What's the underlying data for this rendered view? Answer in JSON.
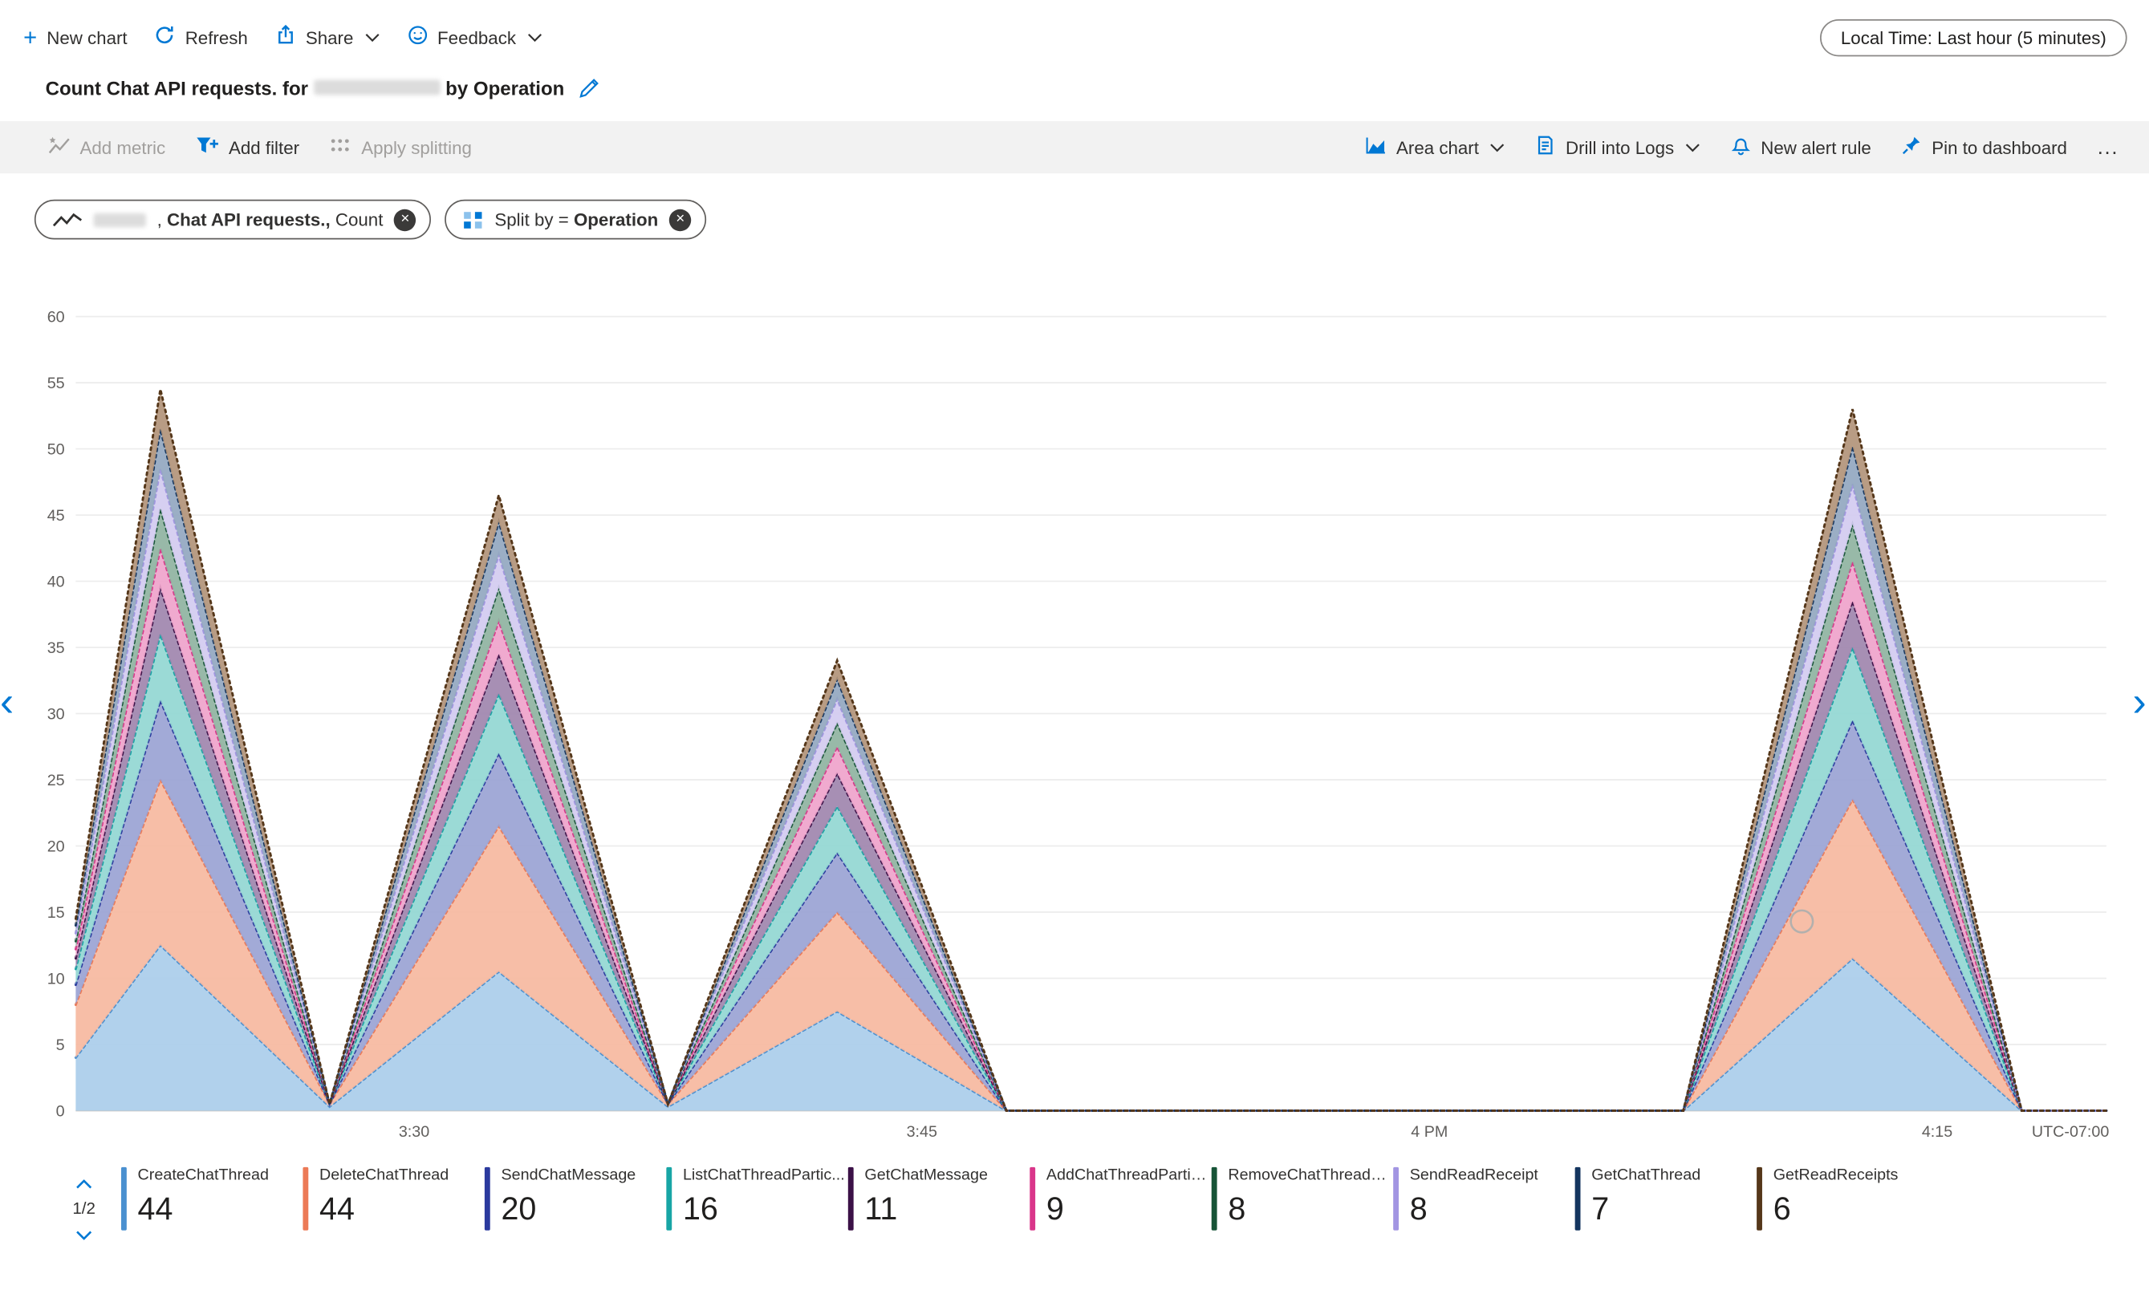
{
  "top_bar": {
    "new_chart": "New chart",
    "refresh": "Refresh",
    "share": "Share",
    "feedback": "Feedback",
    "time_range": "Local Time: Last hour (5 minutes)"
  },
  "title": {
    "prefix": "Count Chat API requests. for",
    "suffix": "by Operation"
  },
  "command_bar": {
    "add_metric": "Add metric",
    "add_filter": "Add filter",
    "apply_splitting": "Apply splitting",
    "chart_type": "Area chart",
    "drill_into_logs": "Drill into Logs",
    "new_alert_rule": "New alert rule",
    "pin_to_dashboard": "Pin to dashboard",
    "more": "..."
  },
  "pills": {
    "metric": {
      "separator": ", ",
      "name": "Chat API requests.,",
      "aggregation": "Count"
    },
    "split": {
      "label": "Split by = ",
      "value": "Operation"
    }
  },
  "legend": {
    "page": "1/2"
  },
  "axis": {
    "timezone": "UTC-07:00",
    "y_ticks": [
      0,
      5,
      10,
      15,
      20,
      25,
      30,
      35,
      40,
      45,
      50,
      55,
      60
    ]
  },
  "icons": {
    "new_chart": "plus-icon",
    "refresh": "circular-arrow-icon",
    "share": "share-arrow-icon",
    "feedback": "smiley-icon",
    "chevron": "chevron-down-icon",
    "add_metric": "sparkline-star-icon",
    "add_filter": "funnel-plus-icon",
    "apply_splitting": "dots-grid-icon",
    "area_chart": "area-chart-icon",
    "drill_into_logs": "document-lines-icon",
    "new_alert_rule": "bell-icon",
    "pin_to_dashboard": "pushpin-icon",
    "more": "ellipsis-icon",
    "metric_pill": "sparkline-icon",
    "split_pill": "split-squares-icon",
    "close": "x-circle-icon",
    "edit_title": "pencil-icon",
    "pan_left": "chevron-left-icon",
    "pan_right": "chevron-right-icon"
  },
  "chart_data": {
    "type": "area",
    "stacked": true,
    "title": "Count Chat API requests by Operation",
    "ylim": [
      0,
      60
    ],
    "y_tick_step": 5,
    "grid": "horizontal",
    "legend_position": "bottom",
    "x_start_time": "3:20 PM",
    "x_end_time": "4:20 PM",
    "x_minutes": [
      0,
      2.5,
      7.5,
      12.5,
      17.5,
      22.5,
      27.5,
      32.5,
      37.5,
      42.5,
      47.5,
      52.5,
      57.5,
      60
    ],
    "x_ticks": [
      {
        "minute": 10,
        "label": "3:30"
      },
      {
        "minute": 25,
        "label": "3:45"
      },
      {
        "minute": 40,
        "label": "4 PM"
      },
      {
        "minute": 55,
        "label": "4:15"
      }
    ],
    "hover_marker": {
      "minute": 51,
      "value": 14.3
    },
    "series": [
      {
        "name": "CreateChatThread",
        "total": 44,
        "color": "#4a90d0",
        "fill": "#aacdea",
        "values": [
          4,
          12.5,
          0.3,
          10.5,
          0.3,
          7.5,
          0,
          0,
          0,
          0,
          0,
          11.5,
          0,
          0
        ]
      },
      {
        "name": "DeleteChatThread",
        "total": 44,
        "color": "#ec7a56",
        "fill": "#f6b9a0",
        "values": [
          4,
          12.5,
          0.2,
          11,
          0.2,
          7.5,
          0,
          0,
          0,
          0,
          0,
          12,
          0,
          0
        ]
      },
      {
        "name": "SendChatMessage",
        "total": 20,
        "color": "#2b3a9e",
        "fill": "#9aa3d4",
        "values": [
          1.5,
          6,
          0,
          5.5,
          0,
          4.5,
          0,
          0,
          0,
          0,
          0,
          6,
          0,
          0
        ]
      },
      {
        "name": "ListChatThreadPartic...",
        "total": 16,
        "color": "#18a5a5",
        "fill": "#93d7d3",
        "values": [
          1.2,
          5,
          0,
          4.5,
          0,
          3.5,
          0,
          0,
          0,
          0,
          0,
          5.5,
          0,
          0
        ]
      },
      {
        "name": "GetChatMessage",
        "total": 11,
        "color": "#3b1147",
        "fill": "#9f86ae",
        "values": [
          0.8,
          3.5,
          0,
          3,
          0,
          2.5,
          0,
          0,
          0,
          0,
          0,
          3.5,
          0,
          0
        ]
      },
      {
        "name": "AddChatThreadPartici...",
        "total": 9,
        "color": "#d9368a",
        "fill": "#efa3cb",
        "values": [
          0.7,
          3,
          0,
          2.5,
          0,
          2,
          0,
          0,
          0,
          0,
          0,
          3,
          0,
          0
        ]
      },
      {
        "name": "RemoveChatThreadPart...",
        "total": 8,
        "color": "#175437",
        "fill": "#8fb3a1",
        "values": [
          0.6,
          3,
          0,
          2.5,
          0,
          1.8,
          0,
          0,
          0,
          0,
          0,
          2.8,
          0,
          0
        ]
      },
      {
        "name": "SendReadReceipt",
        "total": 8,
        "color": "#a295e2",
        "fill": "#d3cbf0",
        "values": [
          0.6,
          3,
          0,
          2.5,
          0,
          1.8,
          0,
          0,
          0,
          0,
          0,
          3,
          0,
          0
        ]
      },
      {
        "name": "GetChatThread",
        "total": 7,
        "color": "#14355f",
        "fill": "#93a7c0",
        "values": [
          0.6,
          3,
          0,
          2.5,
          0,
          1.5,
          0,
          0,
          0,
          0,
          0,
          2.9,
          0,
          0
        ]
      },
      {
        "name": "GetReadReceipts",
        "total": 6,
        "color": "#55371a",
        "fill": "#b29479",
        "values": [
          0.5,
          3,
          0,
          2,
          0,
          1.4,
          0,
          0,
          0,
          0,
          0,
          2.8,
          0,
          0
        ]
      }
    ]
  }
}
